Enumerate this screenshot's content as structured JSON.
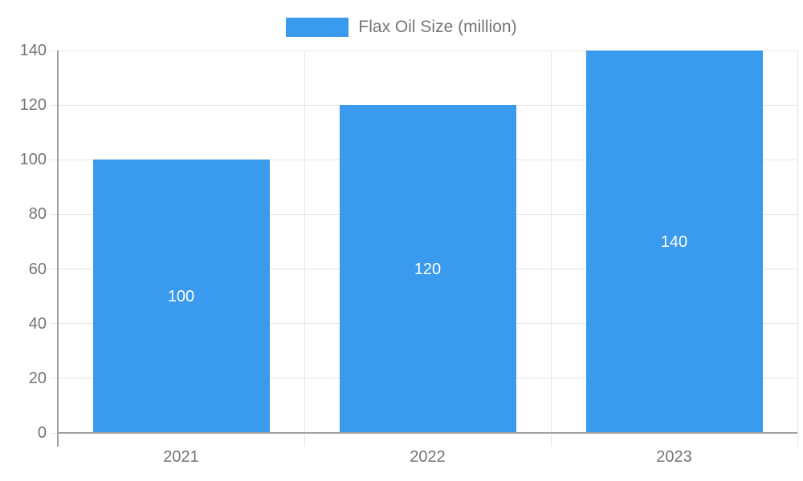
{
  "legend": {
    "label": "Flax Oil Size (million)"
  },
  "chart_data": {
    "type": "bar",
    "title": "",
    "series_name": "Flax Oil Size (million)",
    "categories": [
      "2021",
      "2022",
      "2023"
    ],
    "values": [
      100,
      120,
      140
    ],
    "data_labels": [
      "100",
      "120",
      "140"
    ],
    "xlabel": "",
    "ylabel": "",
    "ylim": [
      0,
      140
    ],
    "yticks": [
      0,
      20,
      40,
      60,
      80,
      100,
      120,
      140
    ],
    "ytick_labels": [
      "0",
      "20",
      "40",
      "60",
      "80",
      "100",
      "120",
      "140"
    ],
    "grid": true,
    "legend_position": "top-center"
  },
  "colors": {
    "bar": "#399AEE",
    "grid": "#e6e6e6",
    "axis": "#a0a0a0",
    "text": "#757575",
    "bar_label": "#ffffff",
    "background": "#ffffff"
  }
}
